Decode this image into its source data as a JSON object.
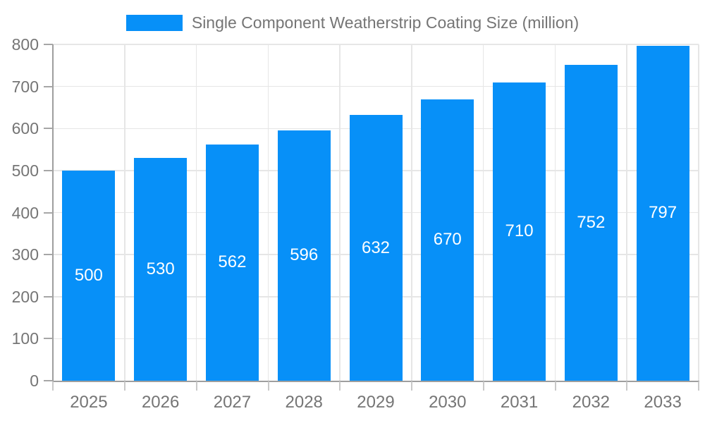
{
  "chart_data": {
    "type": "bar",
    "title": "",
    "xlabel": "",
    "ylabel": "",
    "legend_position": "top",
    "grid": true,
    "categories": [
      "2025",
      "2026",
      "2027",
      "2028",
      "2029",
      "2030",
      "2031",
      "2032",
      "2033"
    ],
    "series": [
      {
        "name": "Single Component Weatherstrip Coating Size (million)",
        "values": [
          500,
          530,
          562,
          596,
          632,
          670,
          710,
          752,
          797
        ],
        "color": "#0790F8"
      }
    ],
    "ylim": [
      0,
      800
    ],
    "yticks": [
      0,
      100,
      200,
      300,
      400,
      500,
      600,
      700,
      800
    ],
    "value_labels": {
      "show": true,
      "position": "center",
      "color": "#FFFFFF"
    },
    "axis": {
      "text_color": "#757575",
      "line_color": "#9E9E9E",
      "grid_color": "#E6E6E6",
      "y_tick_color": "#A6A6A6",
      "x_tick_color": "#C9C9C9"
    }
  }
}
